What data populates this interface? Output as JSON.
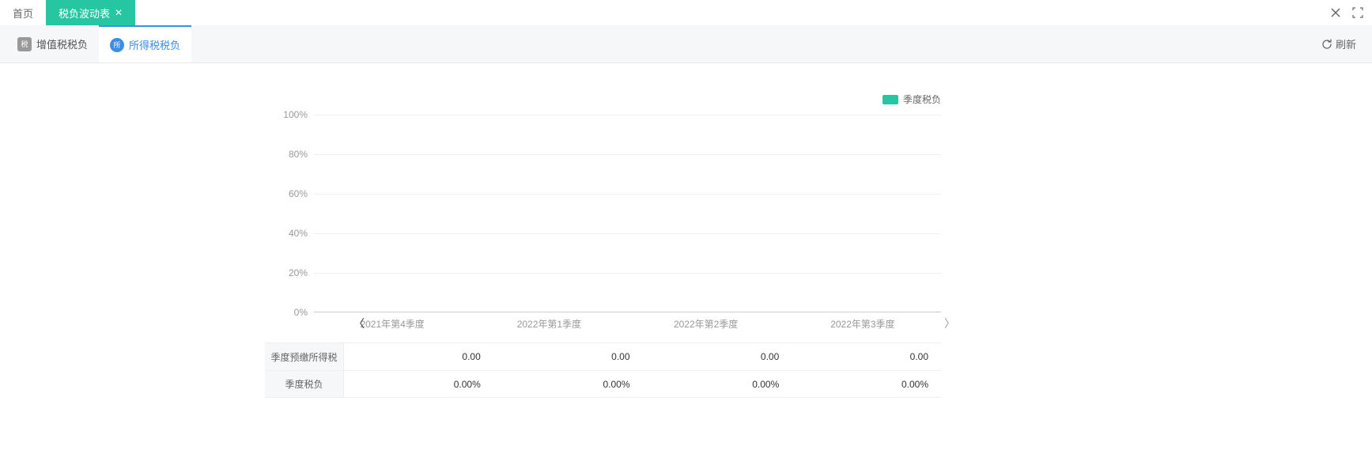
{
  "topTabs": {
    "home": "首页",
    "active": "税负波动表"
  },
  "subTabs": {
    "vat": "增值税税负",
    "income": "所得税税负"
  },
  "refresh": "刷新",
  "legend": {
    "label": "季度税负",
    "color": "#27c6a3"
  },
  "chart": {
    "type": "bar",
    "background": "#ffffff",
    "grid_color": "#f0f0f0",
    "axis_color": "#cccccc",
    "tick_fontsize": 12,
    "tick_color": "#999999",
    "ylim": [
      0,
      100
    ],
    "ytick_step": 20,
    "yticks": [
      "0%",
      "20%",
      "40%",
      "60%",
      "80%",
      "100%"
    ],
    "categories": [
      "2021年第4季度",
      "2022年第1季度",
      "2022年第2季度",
      "2022年第3季度"
    ],
    "values": [
      0,
      0,
      0,
      0
    ],
    "series_color": "#27c6a3"
  },
  "table": {
    "rows": [
      {
        "label": "季度预缴所得税",
        "values": [
          "0.00",
          "0.00",
          "0.00",
          "0.00"
        ]
      },
      {
        "label": "季度税负",
        "values": [
          "0.00%",
          "0.00%",
          "0.00%",
          "0.00%"
        ]
      }
    ],
    "label_bg": "#f5f7f9",
    "border_color": "#eeeeee"
  }
}
